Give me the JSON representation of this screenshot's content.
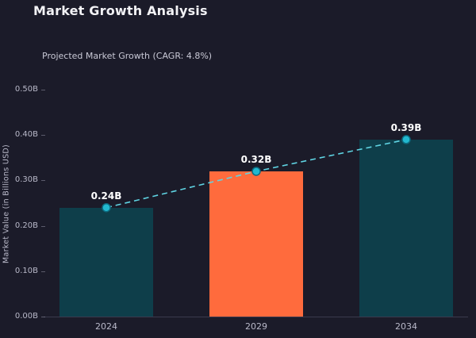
{
  "chart_data": {
    "type": "bar",
    "title": "Market Growth Analysis",
    "subtitle": "Projected Market Growth (CAGR: 4.8%)",
    "ylabel": "Market Value (in Billions USD)",
    "xlabel": "",
    "categories": [
      "2024",
      "2029",
      "2034"
    ],
    "values": [
      0.24,
      0.32,
      0.39
    ],
    "value_labels": [
      "0.24B",
      "0.32B",
      "0.39B"
    ],
    "ylim": [
      0,
      0.5
    ],
    "yticks": [
      0,
      0.1,
      0.2,
      0.3,
      0.4,
      0.5
    ],
    "ytick_labels": [
      "0.00B",
      "0.10B",
      "0.20B",
      "0.30B",
      "0.40B",
      "0.50B"
    ],
    "grid": false,
    "legend": "none",
    "overlay_line": {
      "type": "line",
      "style": "dashed",
      "values": [
        0.24,
        0.32,
        0.39
      ]
    },
    "colors": {
      "background": "#1b1b29",
      "bar_colors": [
        "#0e3e4a",
        "#ff6b3d",
        "#0e3e4a"
      ],
      "line": "#5fd4e3",
      "dot": "#22b8cf",
      "dot_ring": "#0d6b80",
      "title_text": "#f2f2f5",
      "subtitle_text": "#c9c9d6",
      "axis_text": "#b9b9c9",
      "value_text": "#ffffff",
      "tick_mark": "#8f8fa3"
    }
  }
}
